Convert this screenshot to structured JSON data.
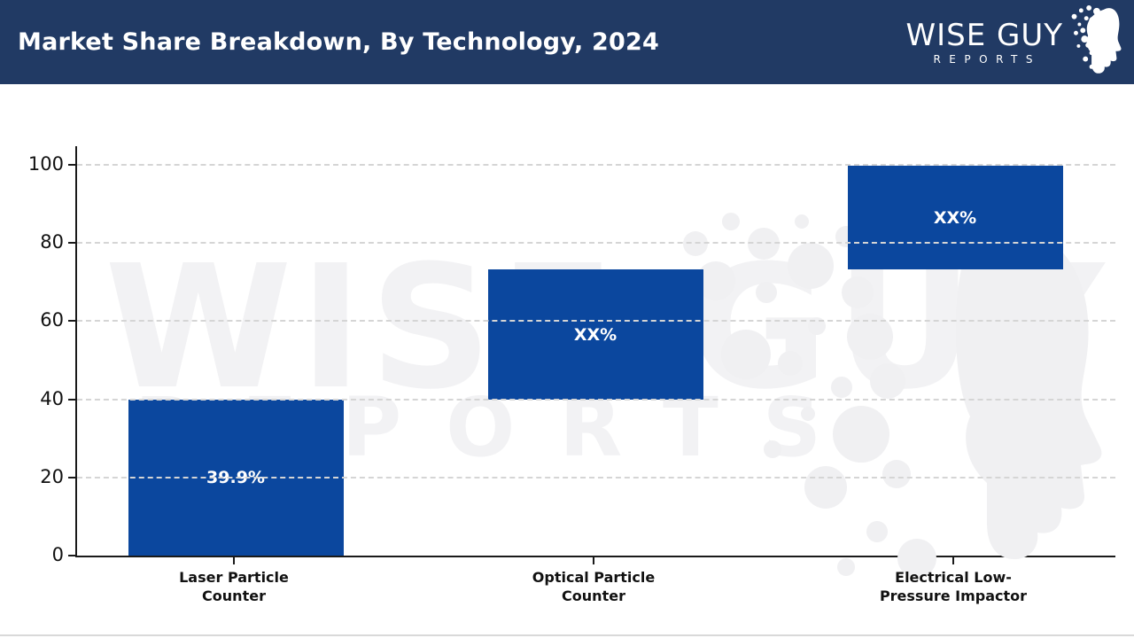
{
  "header": {
    "title": "Market Share Breakdown, By Technology, 2024",
    "background_color": "#213a64",
    "logo": {
      "wordmark": "WISE GUY",
      "subtext": "REPORTS",
      "icon": "dotted-face-profile"
    }
  },
  "watermark": {
    "row1": "WISE GUY",
    "row2": "REPORTS",
    "color": "#f2f2f4",
    "art": "dotted-face-profile"
  },
  "chart_data": {
    "type": "bar",
    "subtype": "floating-waterfall",
    "title": "Market Share Breakdown, By Technology, 2024",
    "categories": [
      [
        "Laser Particle",
        "Counter"
      ],
      [
        "Optical Particle",
        "Counter"
      ],
      [
        "Electrical Low-",
        "Pressure Impactor"
      ]
    ],
    "series": [
      {
        "name": "Market share (%)",
        "segments": [
          {
            "start": 0,
            "end": 39.9,
            "label": "39.9%"
          },
          {
            "start": 39.9,
            "end": 73.2,
            "label": "XX%"
          },
          {
            "start": 73.2,
            "end": 99.8,
            "label": "XX%"
          }
        ]
      }
    ],
    "bar_color": "#0b479e",
    "bar_label_color": "#ffffff",
    "ylim": [
      0,
      100
    ],
    "yticks": [
      0,
      20,
      40,
      60,
      80,
      100
    ],
    "grid": {
      "axis": "y",
      "style": "dashed",
      "color": "#d5d5d5",
      "drawn_over_bars": true
    },
    "legend": "none"
  }
}
